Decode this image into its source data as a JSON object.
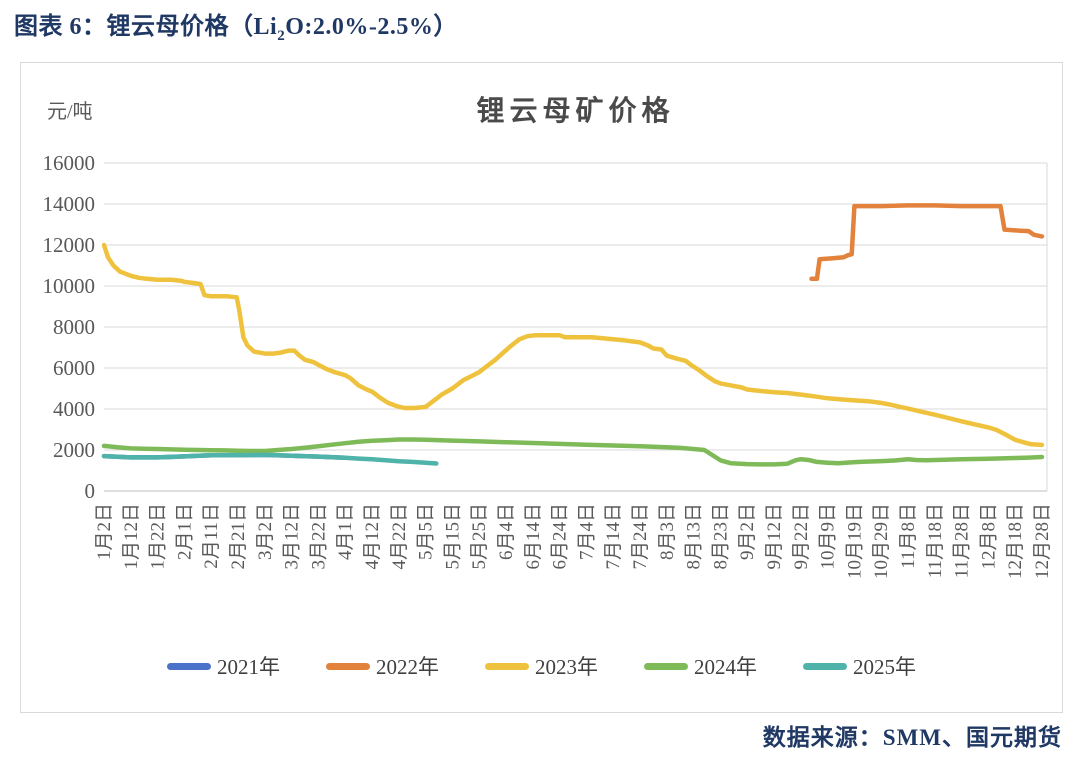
{
  "page": {
    "figure_title": {
      "prefix": "图表 6：锂云母价格（Li",
      "sub": "2",
      "suffix": "O:2.0%-2.5%）"
    },
    "source_note": "数据来源：SMM、国元期货"
  },
  "chart_data": {
    "type": "line",
    "title": "锂云母矿价格",
    "unit_label": "元/吨",
    "xlabel": "",
    "ylabel": "元/吨",
    "ylim": [
      0,
      16000
    ],
    "y_ticks": [
      0,
      2000,
      4000,
      6000,
      8000,
      10000,
      12000,
      14000,
      16000
    ],
    "grid": true,
    "legend_position": "bottom",
    "x_labels": [
      "1月2日",
      "1月12日",
      "1月22日",
      "2月1日",
      "2月11日",
      "2月21日",
      "3月2日",
      "3月12日",
      "3月22日",
      "4月1日",
      "4月12日",
      "4月22日",
      "5月5日",
      "5月15日",
      "5月25日",
      "6月4日",
      "6月14日",
      "6月24日",
      "7月4日",
      "7月14日",
      "7月24日",
      "8月3日",
      "8月13日",
      "8月23日",
      "9月2日",
      "9月12日",
      "9月22日",
      "10月9日",
      "10月19日",
      "10月29日",
      "11月8日",
      "11月18日",
      "11月28日",
      "12月8日",
      "12月18日",
      "12月28日"
    ],
    "series": [
      {
        "name": "2021年",
        "color": "#4A72C9",
        "points": [
          [
            0,
            1700
          ],
          [
            1,
            1640
          ],
          [
            2,
            1640
          ],
          [
            3,
            1690
          ],
          [
            4,
            1740
          ],
          [
            5,
            1750
          ],
          [
            6,
            1760
          ],
          [
            7,
            1720
          ],
          [
            8,
            1680
          ],
          [
            9,
            1620
          ]
        ]
      },
      {
        "name": "2022年",
        "color": "#E2823C",
        "points": [
          [
            26.4,
            10350
          ],
          [
            26.6,
            10350
          ],
          [
            26.7,
            11300
          ],
          [
            27.2,
            11350
          ],
          [
            27.6,
            11400
          ],
          [
            27.75,
            11500
          ],
          [
            27.9,
            11550
          ],
          [
            28.0,
            13900
          ],
          [
            29,
            13900
          ],
          [
            30,
            13930
          ],
          [
            31,
            13930
          ],
          [
            32,
            13900
          ],
          [
            33,
            13900
          ],
          [
            33.45,
            13900
          ],
          [
            33.6,
            12750
          ],
          [
            34.2,
            12700
          ],
          [
            34.5,
            12680
          ],
          [
            34.7,
            12500
          ],
          [
            35,
            12420
          ]
        ]
      },
      {
        "name": "2023年",
        "color": "#EFC23E",
        "points": [
          [
            0,
            12000
          ],
          [
            0.15,
            11400
          ],
          [
            0.35,
            11000
          ],
          [
            0.6,
            10700
          ],
          [
            0.8,
            10600
          ],
          [
            1,
            10500
          ],
          [
            1.3,
            10400
          ],
          [
            1.6,
            10350
          ],
          [
            2,
            10300
          ],
          [
            2.5,
            10300
          ],
          [
            2.9,
            10250
          ],
          [
            3,
            10200
          ],
          [
            3.3,
            10150
          ],
          [
            3.6,
            10100
          ],
          [
            3.75,
            9550
          ],
          [
            4,
            9500
          ],
          [
            4.6,
            9500
          ],
          [
            4.95,
            9450
          ],
          [
            5.05,
            8800
          ],
          [
            5.2,
            7500
          ],
          [
            5.35,
            7100
          ],
          [
            5.6,
            6800
          ],
          [
            5.8,
            6750
          ],
          [
            6,
            6700
          ],
          [
            6.3,
            6700
          ],
          [
            6.6,
            6750
          ],
          [
            6.9,
            6850
          ],
          [
            7.1,
            6850
          ],
          [
            7.3,
            6600
          ],
          [
            7.5,
            6400
          ],
          [
            7.8,
            6300
          ],
          [
            8,
            6150
          ],
          [
            8.3,
            5950
          ],
          [
            8.6,
            5800
          ],
          [
            9,
            5650
          ],
          [
            9.2,
            5500
          ],
          [
            9.5,
            5150
          ],
          [
            9.8,
            4950
          ],
          [
            10,
            4850
          ],
          [
            10.3,
            4550
          ],
          [
            10.6,
            4300
          ],
          [
            10.9,
            4150
          ],
          [
            11.2,
            4050
          ],
          [
            11.6,
            4050
          ],
          [
            12,
            4100
          ],
          [
            12.3,
            4400
          ],
          [
            12.6,
            4700
          ],
          [
            13,
            5000
          ],
          [
            13.4,
            5400
          ],
          [
            13.7,
            5600
          ],
          [
            14,
            5800
          ],
          [
            14.3,
            6100
          ],
          [
            14.6,
            6400
          ],
          [
            14.9,
            6750
          ],
          [
            15.2,
            7100
          ],
          [
            15.5,
            7400
          ],
          [
            15.8,
            7550
          ],
          [
            16.1,
            7600
          ],
          [
            17,
            7600
          ],
          [
            17.2,
            7500
          ],
          [
            18.2,
            7500
          ],
          [
            18.6,
            7450
          ],
          [
            19,
            7400
          ],
          [
            19.4,
            7350
          ],
          [
            19.7,
            7300
          ],
          [
            20,
            7250
          ],
          [
            20.3,
            7100
          ],
          [
            20.5,
            6950
          ],
          [
            20.8,
            6900
          ],
          [
            21,
            6600
          ],
          [
            21.4,
            6450
          ],
          [
            21.7,
            6350
          ],
          [
            21.9,
            6150
          ],
          [
            22.2,
            5900
          ],
          [
            22.5,
            5600
          ],
          [
            22.8,
            5350
          ],
          [
            23,
            5250
          ],
          [
            23.4,
            5150
          ],
          [
            23.8,
            5050
          ],
          [
            24,
            4950
          ],
          [
            24.5,
            4880
          ],
          [
            25,
            4820
          ],
          [
            25.5,
            4780
          ],
          [
            26,
            4700
          ],
          [
            26.5,
            4620
          ],
          [
            27,
            4520
          ],
          [
            27.5,
            4470
          ],
          [
            28,
            4420
          ],
          [
            28.5,
            4380
          ],
          [
            29,
            4300
          ],
          [
            29.4,
            4200
          ],
          [
            29.7,
            4100
          ],
          [
            30,
            4020
          ],
          [
            30.5,
            3870
          ],
          [
            31,
            3720
          ],
          [
            31.5,
            3560
          ],
          [
            32,
            3400
          ],
          [
            32.5,
            3250
          ],
          [
            33,
            3100
          ],
          [
            33.3,
            2980
          ],
          [
            33.6,
            2780
          ],
          [
            34,
            2500
          ],
          [
            34.3,
            2380
          ],
          [
            34.6,
            2280
          ],
          [
            35,
            2250
          ]
        ]
      },
      {
        "name": "2024年",
        "color": "#7FBA59",
        "points": [
          [
            0,
            2200
          ],
          [
            0.5,
            2130
          ],
          [
            1,
            2080
          ],
          [
            1.5,
            2060
          ],
          [
            2,
            2050
          ],
          [
            3,
            2010
          ],
          [
            3.5,
            2000
          ],
          [
            4,
            1990
          ],
          [
            4.5,
            1980
          ],
          [
            5,
            1960
          ],
          [
            5.5,
            1950
          ],
          [
            6,
            1950
          ],
          [
            6.5,
            2000
          ],
          [
            7,
            2050
          ],
          [
            7.5,
            2110
          ],
          [
            8,
            2180
          ],
          [
            8.5,
            2260
          ],
          [
            9,
            2330
          ],
          [
            9.5,
            2400
          ],
          [
            10,
            2450
          ],
          [
            10.5,
            2480
          ],
          [
            11,
            2510
          ],
          [
            11.5,
            2510
          ],
          [
            12,
            2500
          ],
          [
            13,
            2460
          ],
          [
            14,
            2420
          ],
          [
            15,
            2380
          ],
          [
            16,
            2340
          ],
          [
            17,
            2300
          ],
          [
            18,
            2260
          ],
          [
            19,
            2220
          ],
          [
            20,
            2180
          ],
          [
            21,
            2130
          ],
          [
            21.5,
            2100
          ],
          [
            22,
            2050
          ],
          [
            22.4,
            2000
          ],
          [
            22.7,
            1750
          ],
          [
            23,
            1500
          ],
          [
            23.4,
            1350
          ],
          [
            24,
            1310
          ],
          [
            24.5,
            1300
          ],
          [
            25,
            1300
          ],
          [
            25.5,
            1330
          ],
          [
            25.8,
            1500
          ],
          [
            26,
            1550
          ],
          [
            26.3,
            1510
          ],
          [
            26.6,
            1420
          ],
          [
            27,
            1380
          ],
          [
            27.4,
            1350
          ],
          [
            27.8,
            1390
          ],
          [
            28.2,
            1420
          ],
          [
            28.6,
            1440
          ],
          [
            29,
            1460
          ],
          [
            29.5,
            1490
          ],
          [
            30,
            1550
          ],
          [
            30.3,
            1510
          ],
          [
            30.7,
            1500
          ],
          [
            31.5,
            1530
          ],
          [
            32,
            1550
          ],
          [
            33,
            1570
          ],
          [
            34,
            1610
          ],
          [
            34.5,
            1630
          ],
          [
            35,
            1660
          ]
        ]
      },
      {
        "name": "2025年",
        "color": "#4FB3A9",
        "points": [
          [
            0,
            1700
          ],
          [
            0.5,
            1670
          ],
          [
            1,
            1640
          ],
          [
            2,
            1640
          ],
          [
            2.5,
            1660
          ],
          [
            3,
            1690
          ],
          [
            4,
            1740
          ],
          [
            5,
            1750
          ],
          [
            6,
            1760
          ],
          [
            6.5,
            1740
          ],
          [
            7,
            1720
          ],
          [
            8,
            1680
          ],
          [
            8.5,
            1650
          ],
          [
            9,
            1620
          ],
          [
            9.5,
            1580
          ],
          [
            10,
            1550
          ],
          [
            10.5,
            1500
          ],
          [
            11,
            1450
          ],
          [
            11.5,
            1420
          ],
          [
            12,
            1380
          ],
          [
            12.4,
            1340
          ]
        ]
      }
    ],
    "colors": {
      "grid": "#D9D9D9",
      "zero_line": "#BFBFBF",
      "axis_text": "#595959",
      "title_text": "#4a4a4a",
      "accent_navy": "#1F3864"
    }
  }
}
